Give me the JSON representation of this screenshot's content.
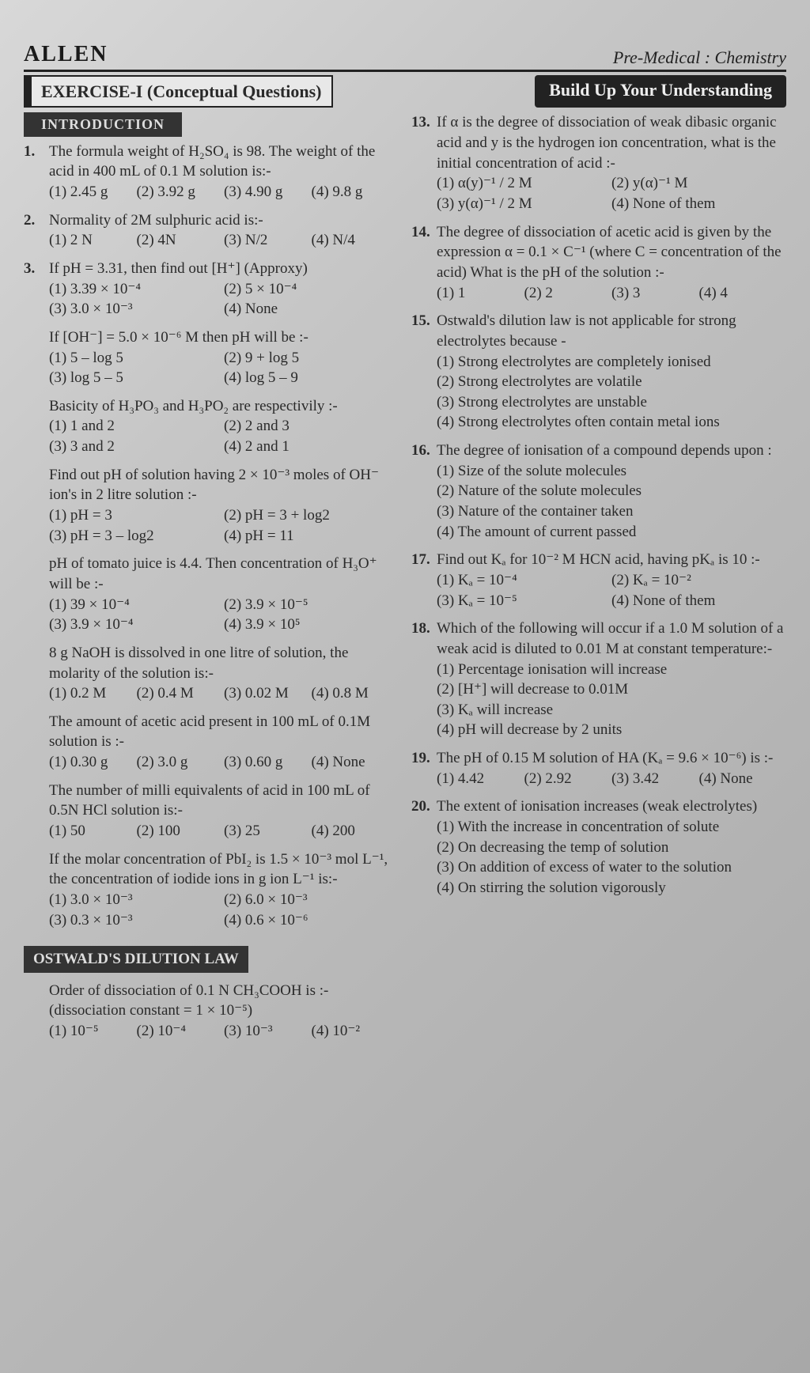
{
  "brand": "ALLEN",
  "pre_med": "Pre-Medical : Chemistry",
  "exercise": "EXERCISE-I (Conceptual Questions)",
  "build_up": "Build Up Your Understanding",
  "intro_label": "INTRODUCTION",
  "section2": "OSTWALD'S DILUTION LAW",
  "q1": {
    "num": "1.",
    "text": "The formula weight of H₂SO₄ is 98. The weight of the acid in 400 mL of 0.1 M solution is:-",
    "o1": "(1) 2.45 g",
    "o2": "(2) 3.92 g",
    "o3": "(3) 4.90 g",
    "o4": "(4) 9.8 g"
  },
  "q2": {
    "num": "2.",
    "text": "Normality of 2M sulphuric acid is:-",
    "o1": "(1) 2 N",
    "o2": "(2) 4N",
    "o3": "(3) N/2",
    "o4": "(4) N/4"
  },
  "q3": {
    "num": "3.",
    "text": "If pH = 3.31, then find out [H⁺] (Approxy)",
    "o1": "(1) 3.39 × 10⁻⁴",
    "o2": "(2) 5 × 10⁻⁴",
    "o3": "(3) 3.0 × 10⁻³",
    "o4": "(4) None"
  },
  "q4": {
    "text": "If [OH⁻] = 5.0 × 10⁻⁶ M then pH will be :-",
    "o1": "(1) 5 – log 5",
    "o2": "(2) 9 + log 5",
    "o3": "(3) log 5 – 5",
    "o4": "(4) log 5 – 9"
  },
  "q5": {
    "text": "Basicity of H₃PO₃ and H₃PO₂ are respectivily :-",
    "o1": "(1) 1 and 2",
    "o2": "(2) 2 and 3",
    "o3": "(3) 3 and 2",
    "o4": "(4) 2 and 1"
  },
  "q6": {
    "text": "Find out pH of solution having 2 × 10⁻³ moles of OH⁻ ion's in 2 litre solution :-",
    "o1": "(1) pH = 3",
    "o2": "(2) pH = 3 + log2",
    "o3": "(3) pH = 3 – log2",
    "o4": "(4) pH = 11"
  },
  "q7": {
    "text": "pH of tomato juice is 4.4. Then concentration of H₃O⁺ will be :-",
    "o1": "(1) 39 × 10⁻⁴",
    "o2": "(2) 3.9 × 10⁻⁵",
    "o3": "(3) 3.9 × 10⁻⁴",
    "o4": "(4) 3.9 × 10⁵"
  },
  "q8": {
    "text": "8 g NaOH is dissolved in one litre of solution, the molarity of the solution is:-",
    "o1": "(1) 0.2 M",
    "o2": "(2) 0.4 M",
    "o3": "(3) 0.02 M",
    "o4": "(4) 0.8 M"
  },
  "q9": {
    "text": "The amount of acetic acid present in 100 mL of 0.1M solution is :-",
    "o1": "(1) 0.30 g",
    "o2": "(2) 3.0 g",
    "o3": "(3) 0.60 g",
    "o4": "(4) None"
  },
  "q10": {
    "text": "The number of milli equivalents of acid in 100 mL of 0.5N HCl solution is:-",
    "o1": "(1) 50",
    "o2": "(2) 100",
    "o3": "(3) 25",
    "o4": "(4) 200"
  },
  "q11": {
    "text": "If the molar concentration of PbI₂ is 1.5 × 10⁻³ mol L⁻¹, the concentration of iodide ions in g ion L⁻¹ is:-",
    "o1": "(1) 3.0 × 10⁻³",
    "o2": "(2) 6.0 × 10⁻³",
    "o3": "(3) 0.3 × 10⁻³",
    "o4": "(4) 0.6 × 10⁻⁶"
  },
  "q12": {
    "text": "Order of dissociation of 0.1 N CH₃COOH is :- (dissociation constant = 1 × 10⁻⁵)",
    "o1": "(1) 10⁻⁵",
    "o2": "(2) 10⁻⁴",
    "o3": "(3) 10⁻³",
    "o4": "(4) 10⁻²"
  },
  "q13": {
    "num": "13.",
    "text": "If α is the degree of dissociation of weak dibasic organic acid and y is the hydrogen ion concentration, what is the initial concentration of acid :-",
    "o1": "(1) α(y)⁻¹ / 2  M",
    "o2": "(2) y(α)⁻¹ M",
    "o3": "(3) y(α)⁻¹ / 2  M",
    "o4": "(4) None of them"
  },
  "q14": {
    "num": "14.",
    "text": "The degree of dissociation of acetic acid is given by the expression α = 0.1 × C⁻¹ (where C = concentration of the acid) What is the pH of the solution :-",
    "o1": "(1) 1",
    "o2": "(2) 2",
    "o3": "(3) 3",
    "o4": "(4) 4"
  },
  "q15": {
    "num": "15.",
    "text": "Ostwald's dilution law is not applicable for strong electrolytes because -",
    "o1": "(1) Strong electrolytes are completely ionised",
    "o2": "(2) Strong electrolytes are volatile",
    "o3": "(3) Strong electrolytes are unstable",
    "o4": "(4) Strong electrolytes often contain metal ions"
  },
  "q16": {
    "num": "16.",
    "text": "The degree of ionisation of a compound depends upon :",
    "o1": "(1) Size of the solute molecules",
    "o2": "(2) Nature of the solute molecules",
    "o3": "(3) Nature of the container taken",
    "o4": "(4) The amount of current passed"
  },
  "q17": {
    "num": "17.",
    "text": "Find out Kₐ for 10⁻² M HCN acid, having pKₐ is 10 :-",
    "o1": "(1) Kₐ = 10⁻⁴",
    "o2": "(2) Kₐ = 10⁻²",
    "o3": "(3) Kₐ = 10⁻⁵",
    "o4": "(4) None of them"
  },
  "q18": {
    "num": "18.",
    "text": "Which of the following will occur if a 1.0 M solution of a weak acid is diluted to 0.01 M at constant temperature:-",
    "o1": "(1) Percentage ionisation will increase",
    "o2": "(2) [H⁺] will decrease to 0.01M",
    "o3": "(3) Kₐ will increase",
    "o4": "(4) pH will decrease by 2 units"
  },
  "q19": {
    "num": "19.",
    "text": "The pH of 0.15 M solution of HA (Kₐ = 9.6 × 10⁻⁶) is :-",
    "o1": "(1) 4.42",
    "o2": "(2) 2.92",
    "o3": "(3) 3.42",
    "o4": "(4) None"
  },
  "q20": {
    "num": "20.",
    "text": "The extent of ionisation increases (weak electrolytes)",
    "o1": "(1) With the increase in concentration of solute",
    "o2": "(2) On decreasing the temp of solution",
    "o3": "(3) On addition of excess of water to the solution",
    "o4": "(4) On stirring the solution vigorously"
  }
}
